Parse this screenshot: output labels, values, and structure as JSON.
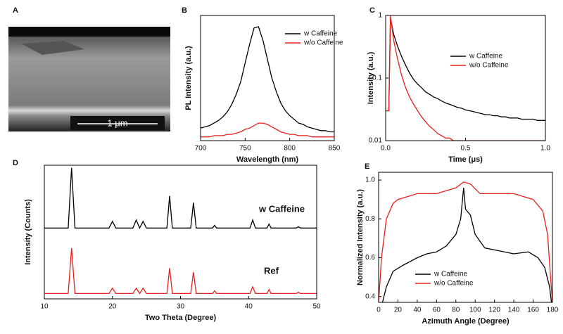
{
  "image_panel": {
    "panel": "A",
    "scale_bar": "1 μm"
  },
  "chart_data": [
    {
      "type": "line",
      "panel": "B",
      "xlabel": "Wavelength (nm)",
      "ylabel": "PL Intensity (a.u.)",
      "xlim": [
        700,
        850
      ],
      "xticks": [
        700,
        750,
        800,
        850
      ],
      "ylim": [
        0,
        1
      ],
      "legend": "upper right",
      "x": [
        700,
        705,
        710,
        715,
        720,
        725,
        730,
        735,
        740,
        745,
        750,
        755,
        760,
        765,
        770,
        775,
        780,
        785,
        790,
        795,
        800,
        805,
        810,
        815,
        820,
        825,
        830,
        835,
        840,
        845,
        850
      ],
      "series": [
        {
          "name": "w Caffeine",
          "color": "#000000",
          "values": [
            0.1,
            0.11,
            0.12,
            0.14,
            0.16,
            0.19,
            0.23,
            0.29,
            0.37,
            0.47,
            0.62,
            0.77,
            0.9,
            0.91,
            0.8,
            0.65,
            0.5,
            0.39,
            0.3,
            0.24,
            0.2,
            0.17,
            0.14,
            0.13,
            0.11,
            0.1,
            0.09,
            0.08,
            0.08,
            0.07,
            0.07
          ]
        },
        {
          "name": "w/o Caffeine",
          "color": "#e8201c",
          "values": [
            0.03,
            0.03,
            0.03,
            0.04,
            0.04,
            0.04,
            0.05,
            0.05,
            0.06,
            0.07,
            0.09,
            0.1,
            0.12,
            0.14,
            0.14,
            0.13,
            0.11,
            0.09,
            0.07,
            0.06,
            0.05,
            0.05,
            0.04,
            0.04,
            0.04,
            0.03,
            0.03,
            0.03,
            0.03,
            0.03,
            0.03
          ]
        }
      ]
    },
    {
      "type": "line",
      "panel": "C",
      "xlabel": "Time (μs)",
      "ylabel": "Intensity (a.u.)",
      "log_y": true,
      "xlim": [
        0,
        1
      ],
      "xticks": [
        {
          "value": 0,
          "label": "0.0"
        },
        0.5,
        {
          "value": 1,
          "label": "1.0"
        }
      ],
      "ylim": [
        0.01,
        1
      ],
      "yticks": [
        0.01,
        0.1,
        1
      ],
      "legend": "upper right",
      "x": [
        0,
        0.02,
        0.03,
        0.05,
        0.075,
        0.1,
        0.125,
        0.15,
        0.175,
        0.2,
        0.225,
        0.25,
        0.275,
        0.3,
        0.325,
        0.35,
        0.375,
        0.4,
        0.425,
        0.45,
        0.475,
        0.5,
        0.525,
        0.55,
        0.575,
        0.6,
        0.625,
        0.65,
        0.675,
        0.7,
        0.725,
        0.75,
        0.775,
        0.8,
        0.825,
        0.85,
        0.875,
        0.9,
        0.925,
        0.95,
        0.975,
        1.0
      ],
      "series": [
        {
          "name": "w Caffeine",
          "color": "#000000",
          "values": [
            0.03,
            0.03,
            0.9,
            0.5,
            0.32,
            0.22,
            0.16,
            0.12,
            0.095,
            0.08,
            0.07,
            0.06,
            0.055,
            0.05,
            0.047,
            0.043,
            0.04,
            0.038,
            0.036,
            0.034,
            0.033,
            0.031,
            0.03,
            0.029,
            0.028,
            0.027,
            0.026,
            0.026,
            0.025,
            0.025,
            0.024,
            0.024,
            0.023,
            0.023,
            0.023,
            0.022,
            0.022,
            0.022,
            0.022,
            0.021,
            0.021,
            0.021
          ]
        },
        {
          "name": "w/o Caffeine",
          "color": "#e8201c",
          "values": [
            0.03,
            0.03,
            1.0,
            0.4,
            0.2,
            0.11,
            0.07,
            0.05,
            0.038,
            0.03,
            0.024,
            0.02,
            0.017,
            0.015,
            0.013,
            0.012,
            0.011,
            0.011,
            0.01,
            0.01,
            0.01,
            0.01,
            0.01,
            0.01,
            0.01,
            0.01,
            0.01,
            0.01,
            0.01,
            0.01,
            0.01,
            0.01,
            0.01,
            0.01,
            0.01,
            0.01,
            0.01,
            0.01,
            0.01,
            0.01,
            0.01,
            0.01
          ]
        }
      ]
    },
    {
      "type": "line",
      "panel": "D",
      "xlabel": "Two Theta (Degree)",
      "ylabel": "Intensity (Counts)",
      "xlim": [
        10,
        50
      ],
      "xticks": [
        10,
        20,
        30,
        40,
        50
      ],
      "ylim": [
        0,
        1
      ],
      "annotations": [
        "w Caffeine",
        "Ref"
      ],
      "x": [
        10,
        13.5,
        14,
        14.5,
        19.5,
        20,
        20.5,
        23,
        23.5,
        24,
        24.5,
        25,
        28,
        28.4,
        28.8,
        31.5,
        31.9,
        32.3,
        34.7,
        35,
        35.3,
        40.2,
        40.6,
        41,
        42.7,
        43,
        43.3,
        47,
        47.3,
        47.6,
        50
      ],
      "series": [
        {
          "name": "w Caffeine",
          "color": "#000000",
          "values": [
            0.53,
            0.53,
            0.98,
            0.53,
            0.53,
            0.58,
            0.53,
            0.53,
            0.59,
            0.53,
            0.58,
            0.53,
            0.53,
            0.77,
            0.53,
            0.53,
            0.72,
            0.53,
            0.53,
            0.55,
            0.53,
            0.53,
            0.59,
            0.53,
            0.53,
            0.56,
            0.53,
            0.53,
            0.54,
            0.53,
            0.53
          ]
        },
        {
          "name": "Ref",
          "color": "#e8201c",
          "values": [
            0.04,
            0.04,
            0.38,
            0.04,
            0.04,
            0.08,
            0.04,
            0.04,
            0.08,
            0.04,
            0.08,
            0.04,
            0.04,
            0.23,
            0.04,
            0.04,
            0.2,
            0.04,
            0.04,
            0.06,
            0.04,
            0.04,
            0.09,
            0.04,
            0.04,
            0.07,
            0.04,
            0.04,
            0.05,
            0.04,
            0.04
          ]
        }
      ]
    },
    {
      "type": "line",
      "panel": "E",
      "xlabel": "Azimuth Angle (Degree)",
      "ylabel": "Normalized Intensity (a.u.)",
      "xlim": [
        0,
        180
      ],
      "xticks": [
        0,
        20,
        40,
        60,
        80,
        100,
        120,
        140,
        160,
        180
      ],
      "ylim": [
        0.37,
        1.04
      ],
      "yticks": [
        0.4,
        0.6,
        0.8,
        {
          "value": 1,
          "label": "1.0"
        }
      ],
      "legend": "lower center",
      "series": [
        {
          "name": "w Caffeine",
          "color": "#000000",
          "x": [
            4,
            8,
            15,
            25,
            40,
            50,
            60,
            70,
            80,
            85,
            88,
            90,
            95,
            100,
            110,
            120,
            140,
            155,
            165,
            172,
            177,
            179
          ],
          "values": [
            0.37,
            0.45,
            0.53,
            0.56,
            0.6,
            0.62,
            0.63,
            0.66,
            0.72,
            0.8,
            0.96,
            0.85,
            0.82,
            0.72,
            0.65,
            0.64,
            0.62,
            0.63,
            0.6,
            0.55,
            0.45,
            0.37
          ]
        },
        {
          "name": "w/o Caffeine",
          "color": "#e8201c",
          "x": [
            0,
            3,
            8,
            15,
            20,
            40,
            60,
            80,
            88,
            95,
            105,
            120,
            140,
            160,
            170,
            175,
            178,
            180
          ],
          "values": [
            0.37,
            0.6,
            0.8,
            0.88,
            0.9,
            0.93,
            0.93,
            0.96,
            0.99,
            0.98,
            0.93,
            0.93,
            0.93,
            0.9,
            0.84,
            0.72,
            0.5,
            0.37
          ]
        }
      ]
    }
  ]
}
